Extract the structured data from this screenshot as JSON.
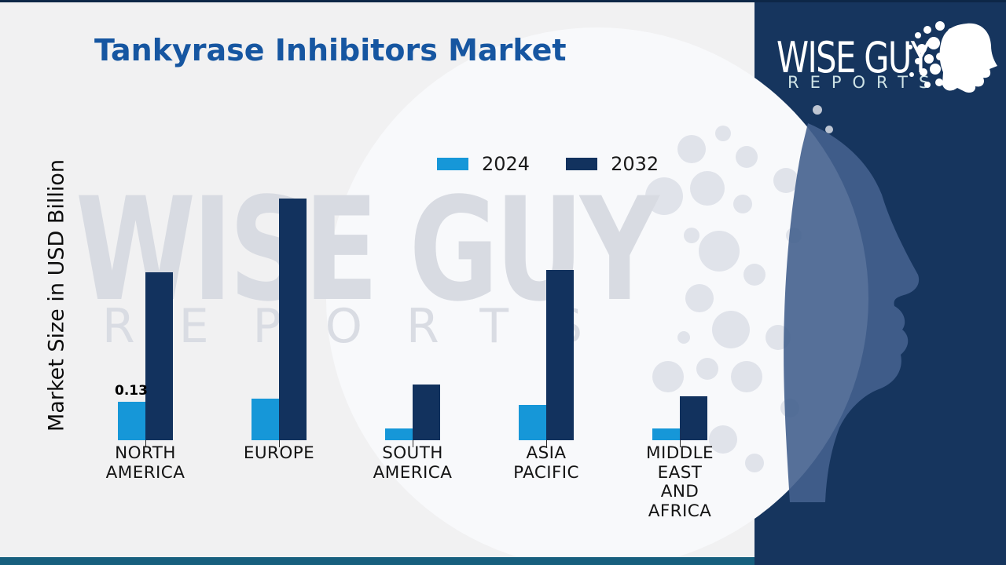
{
  "title": "Tankyrase Inhibitors Market",
  "brand": {
    "line1": "WISE GUY",
    "line2": "REPORTS"
  },
  "watermark": {
    "line1": "WISE GUY",
    "line2": "REPORTS"
  },
  "colors": {
    "series_2024": "#1697d8",
    "series_2032": "#12325e",
    "panel_navy": "#16355e",
    "footer_teal": "#175f7e",
    "title_blue": "#1656a1",
    "background": "#f1f1f2",
    "watermark_gray": "#d8dbe2"
  },
  "chart_data": {
    "type": "bar",
    "title": "Tankyrase Inhibitors Market",
    "ylabel": "Market Size in USD Billion",
    "xlabel": "",
    "ylim": [
      0,
      0.9
    ],
    "grid": false,
    "legend_position": "top-center",
    "categories": [
      "NORTH AMERICA",
      "EUROPE",
      "SOUTH AMERICA",
      "ASIA PACIFIC",
      "MIDDLE EAST AND AFRICA"
    ],
    "label_lines": [
      [
        "NORTH",
        "AMERICA"
      ],
      [
        "EUROPE"
      ],
      [
        "SOUTH",
        "AMERICA"
      ],
      [
        "ASIA",
        "PACIFIC"
      ],
      [
        "MIDDLE",
        "EAST",
        "AND",
        "AFRICA"
      ]
    ],
    "series": [
      {
        "name": "2024",
        "color": "#1697d8",
        "values": [
          0.13,
          0.14,
          0.04,
          0.12,
          0.04
        ]
      },
      {
        "name": "2032",
        "color": "#12325e",
        "values": [
          0.57,
          0.82,
          0.19,
          0.58,
          0.15
        ]
      }
    ],
    "annotations": [
      {
        "category_index": 0,
        "series_index": 0,
        "text": "0.13"
      }
    ]
  }
}
